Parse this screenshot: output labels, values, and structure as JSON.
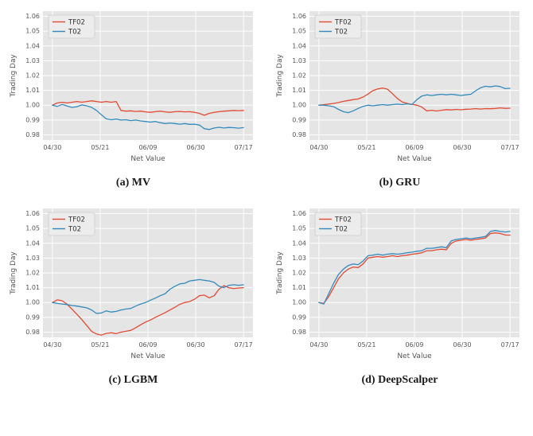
{
  "style": {
    "plot_background": "#e5e5e5",
    "grid_color": "#ffffff",
    "tick_label_color": "#555555",
    "axis_label_color": "#555555",
    "legend_background": "#ececec",
    "legend_border": "#cccccc",
    "series_colors": {
      "TF02": "#e24a33",
      "T02": "#348abd"
    }
  },
  "chart_data": [
    {
      "type": "line",
      "title": "(a) MV",
      "xlabel": "Net Value",
      "ylabel": "Trading Day",
      "ylim": [
        0.98,
        1.06
      ],
      "yticks": [
        0.98,
        0.99,
        1.0,
        1.01,
        1.02,
        1.03,
        1.04,
        1.05,
        1.06
      ],
      "xticklabels": [
        "04/30",
        "05/21",
        "06/09",
        "06/30",
        "07/17"
      ],
      "legend_position": "upper left",
      "grid": true,
      "series": [
        {
          "name": "TF02",
          "values": [
            1.0,
            1.0015,
            1.002,
            1.0015,
            1.002,
            1.0025,
            1.002,
            1.0025,
            1.003,
            1.0025,
            1.002,
            1.0025,
            1.002,
            1.0025,
            0.9965,
            0.996,
            0.9962,
            0.9958,
            0.996,
            0.9955,
            0.9952,
            0.9956,
            0.996,
            0.9955,
            0.9952,
            0.9956,
            0.9958,
            0.9955,
            0.9956,
            0.9952,
            0.9945,
            0.9932,
            0.9945,
            0.9952,
            0.9956,
            0.996,
            0.9962,
            0.9965,
            0.9963,
            0.9965
          ]
        },
        {
          "name": "T02",
          "values": [
            1.0,
            0.9992,
            1.0005,
            0.9995,
            0.9985,
            0.999,
            1.0002,
            0.9996,
            0.9985,
            0.9965,
            0.9935,
            0.9908,
            0.9902,
            0.9906,
            0.99,
            0.9902,
            0.9896,
            0.99,
            0.9894,
            0.989,
            0.9886,
            0.989,
            0.9882,
            0.9876,
            0.988,
            0.9876,
            0.9872,
            0.9876,
            0.9871,
            0.9872,
            0.9866,
            0.9842,
            0.9836,
            0.9846,
            0.9851,
            0.9846,
            0.985,
            0.9848,
            0.9845,
            0.9849
          ]
        }
      ]
    },
    {
      "type": "line",
      "title": "(b) GRU",
      "xlabel": "Net Value",
      "ylabel": "Trading Day",
      "ylim": [
        0.98,
        1.06
      ],
      "yticks": [
        0.98,
        0.99,
        1.0,
        1.01,
        1.02,
        1.03,
        1.04,
        1.05,
        1.06
      ],
      "xticklabels": [
        "04/30",
        "05/21",
        "06/09",
        "06/30",
        "07/17"
      ],
      "legend_position": "upper left",
      "grid": true,
      "series": [
        {
          "name": "TF02",
          "values": [
            1.0,
            1.0004,
            1.0008,
            1.0012,
            1.0018,
            1.0026,
            1.0032,
            1.0038,
            1.0042,
            1.0055,
            1.0075,
            1.0098,
            1.011,
            1.0116,
            1.0108,
            1.0078,
            1.0046,
            1.0022,
            1.0012,
            1.0006,
            1.0,
            0.9988,
            0.9962,
            0.9966,
            0.9961,
            0.9966,
            0.997,
            0.9968,
            0.9972,
            0.9969,
            0.9973,
            0.9974,
            0.9977,
            0.9974,
            0.9977,
            0.9976,
            0.9978,
            0.9982,
            0.9979,
            0.998
          ]
        },
        {
          "name": "T02",
          "values": [
            1.0,
            1.0,
            0.9996,
            0.999,
            0.9972,
            0.9956,
            0.995,
            0.9962,
            0.9978,
            0.9992,
            1.0,
            0.9996,
            1.0,
            1.0004,
            1.0,
            1.0004,
            1.0008,
            1.0004,
            1.0009,
            1.0005,
            1.0038,
            1.0062,
            1.007,
            1.0066,
            1.007,
            1.0074,
            1.007,
            1.0074,
            1.007,
            1.0066,
            1.007,
            1.0074,
            1.0098,
            1.0118,
            1.0128,
            1.0124,
            1.013,
            1.0126,
            1.0112,
            1.0114
          ]
        }
      ]
    },
    {
      "type": "line",
      "title": "(c) LGBM",
      "xlabel": "Net Value",
      "ylabel": "Trading Day",
      "ylim": [
        0.98,
        1.06
      ],
      "yticks": [
        0.98,
        0.99,
        1.0,
        1.01,
        1.02,
        1.03,
        1.04,
        1.05,
        1.06
      ],
      "xticklabels": [
        "04/30",
        "05/21",
        "06/09",
        "06/30",
        "07/17"
      ],
      "legend_position": "upper left",
      "grid": true,
      "series": [
        {
          "name": "TF02",
          "values": [
            1.0,
            1.0018,
            1.0012,
            0.9988,
            0.9955,
            0.992,
            0.9885,
            0.9845,
            0.9805,
            0.9788,
            0.978,
            0.9792,
            0.9796,
            0.979,
            0.98,
            0.9806,
            0.9812,
            0.983,
            0.985,
            0.9868,
            0.9882,
            0.99,
            0.9916,
            0.9932,
            0.995,
            0.9968,
            0.9988,
            1.0,
            1.0006,
            1.0022,
            1.0046,
            1.005,
            1.0032,
            1.0046,
            1.009,
            1.0114,
            1.01,
            1.0094,
            1.0098,
            1.01
          ]
        },
        {
          "name": "T02",
          "values": [
            1.0,
            0.9994,
            0.999,
            0.9986,
            0.998,
            0.9976,
            0.997,
            0.9964,
            0.995,
            0.9926,
            0.993,
            0.9944,
            0.9936,
            0.994,
            0.995,
            0.9956,
            0.996,
            0.9976,
            0.999,
            1.0,
            1.0016,
            1.003,
            1.0046,
            1.006,
            1.009,
            1.011,
            1.0126,
            1.013,
            1.0146,
            1.015,
            1.0155,
            1.015,
            1.0146,
            1.0136,
            1.011,
            1.01,
            1.0116,
            1.012,
            1.0116,
            1.012
          ]
        }
      ]
    },
    {
      "type": "line",
      "title": "(d) DeepScalper",
      "xlabel": "Net Value",
      "ylabel": "Trading Day",
      "ylim": [
        0.98,
        1.06
      ],
      "yticks": [
        0.98,
        0.99,
        1.0,
        1.01,
        1.02,
        1.03,
        1.04,
        1.05,
        1.06
      ],
      "xticklabels": [
        "04/30",
        "05/21",
        "06/09",
        "06/30",
        "07/17"
      ],
      "legend_position": "upper left",
      "grid": true,
      "series": [
        {
          "name": "TF02",
          "values": [
            1.0,
            0.9994,
            1.004,
            1.01,
            1.016,
            1.02,
            1.0226,
            1.024,
            1.0236,
            1.026,
            1.03,
            1.0306,
            1.031,
            1.0306,
            1.031,
            1.0316,
            1.031,
            1.0316,
            1.032,
            1.0326,
            1.033,
            1.0336,
            1.035,
            1.035,
            1.0356,
            1.036,
            1.0356,
            1.04,
            1.0416,
            1.042,
            1.0426,
            1.042,
            1.0426,
            1.043,
            1.0436,
            1.0466,
            1.047,
            1.0466,
            1.0456,
            1.0455
          ]
        },
        {
          "name": "T02",
          "values": [
            1.0,
            0.999,
            1.006,
            1.013,
            1.019,
            1.0226,
            1.025,
            1.026,
            1.0256,
            1.028,
            1.0316,
            1.032,
            1.0326,
            1.032,
            1.0326,
            1.033,
            1.0326,
            1.033,
            1.0336,
            1.034,
            1.0346,
            1.035,
            1.0366,
            1.0366,
            1.037,
            1.0376,
            1.037,
            1.0416,
            1.0426,
            1.043,
            1.0436,
            1.043,
            1.0436,
            1.044,
            1.0446,
            1.048,
            1.0486,
            1.048,
            1.0476,
            1.048
          ]
        }
      ]
    }
  ]
}
